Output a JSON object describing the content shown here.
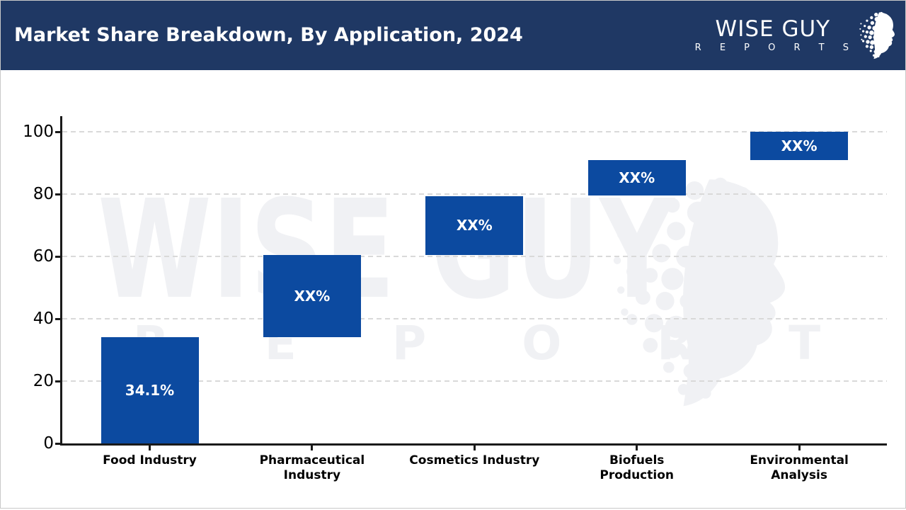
{
  "header": {
    "title": "Market Share Breakdown, By Application, 2024",
    "logo": {
      "name": "WISE GUY",
      "tagline": "R E P O R T S"
    }
  },
  "watermark": {
    "name": "WISE GUY",
    "tagline": "R E P O R T S"
  },
  "chart_data": {
    "type": "bar",
    "subtype": "floating-waterfall",
    "title": "Market Share Breakdown, By Application, 2024",
    "categories": [
      "Food Industry",
      "Pharmaceutical\nIndustry",
      "Cosmetics Industry",
      "Biofuels\nProduction",
      "Environmental\nAnalysis"
    ],
    "segments": [
      {
        "category": "Food Industry",
        "start": 0,
        "end": 34.1,
        "label": "34.1%"
      },
      {
        "category": "Pharmaceutical Industry",
        "start": 34.1,
        "end": 60.5,
        "label": "XX%"
      },
      {
        "category": "Cosmetics Industry",
        "start": 60.5,
        "end": 79.4,
        "label": "XX%"
      },
      {
        "category": "Biofuels Production",
        "start": 79.5,
        "end": 90.8,
        "label": "XX%"
      },
      {
        "category": "Environmental Analysis",
        "start": 90.8,
        "end": 100,
        "label": "XX%"
      }
    ],
    "yticks": [
      0,
      20,
      40,
      60,
      80,
      100
    ],
    "ylim": [
      0,
      105
    ],
    "xlabel": "",
    "ylabel": "",
    "grid": "horizontal-dashed",
    "legend": "none",
    "bar_color": "#0c4aa0"
  },
  "colors": {
    "header_bg": "#1f3864",
    "bar": "#0c4aa0",
    "bar_label": "#ffffff",
    "grid": "#d9d9d9",
    "axis": "#1a1a1a",
    "watermark": "#f0f1f4",
    "page_bg": "#ffffff"
  }
}
